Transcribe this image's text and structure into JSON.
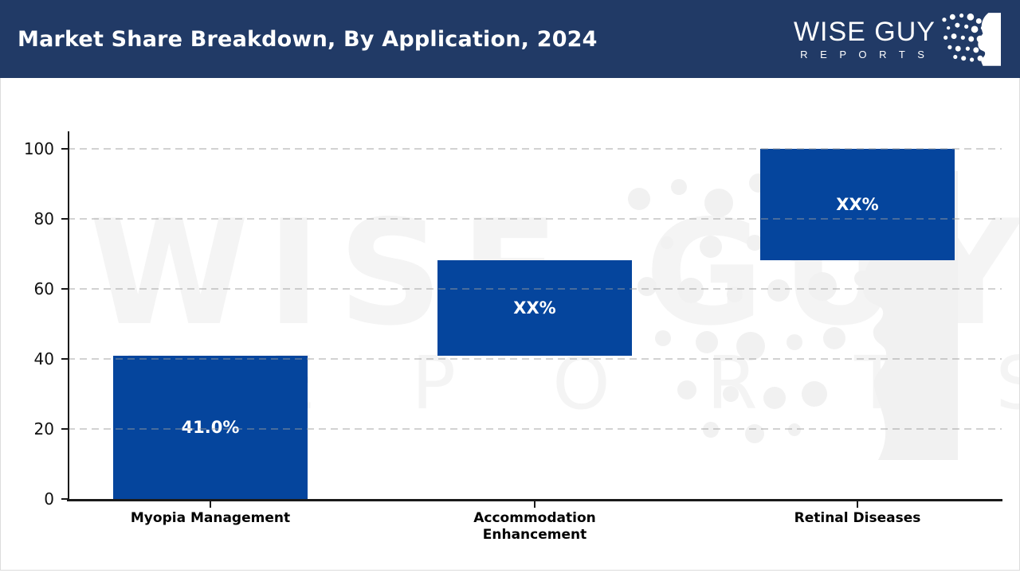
{
  "header": {
    "title": "Market Share Breakdown, By Application, 2024",
    "bg_color": "#213A66",
    "logo": {
      "line1": "WISE GUY",
      "line2": "R E P O R T S"
    }
  },
  "watermark": {
    "line1": "WISE GUY",
    "line2": "R E P O R T S"
  },
  "chart_data": {
    "type": "bar",
    "subtype": "waterfall-range-bars",
    "title": "Market Share Breakdown, By Application, 2024",
    "categories": [
      "Myopia Management",
      "Accommodation Enhancement",
      "Retinal Diseases"
    ],
    "bars": [
      {
        "category": "Myopia Management",
        "start": 0,
        "end": 41,
        "label": "41.0%"
      },
      {
        "category": "Accommodation Enhancement",
        "start": 41,
        "end": 68.2,
        "label": "XX%"
      },
      {
        "category": "Retinal Diseases",
        "start": 68.2,
        "end": 100,
        "label": "XX%"
      }
    ],
    "yticks": [
      0,
      20,
      40,
      60,
      80,
      100
    ],
    "ylim": [
      0,
      105
    ],
    "xlabel": "",
    "ylabel": "",
    "grid": "horizontal-dashed-over-bars",
    "legend": "none",
    "bar_color": "#05459D",
    "bar_label_color": "#FFFFFF",
    "axis_color": "#1A1A1A",
    "grid_color": "#D8D8D8"
  }
}
